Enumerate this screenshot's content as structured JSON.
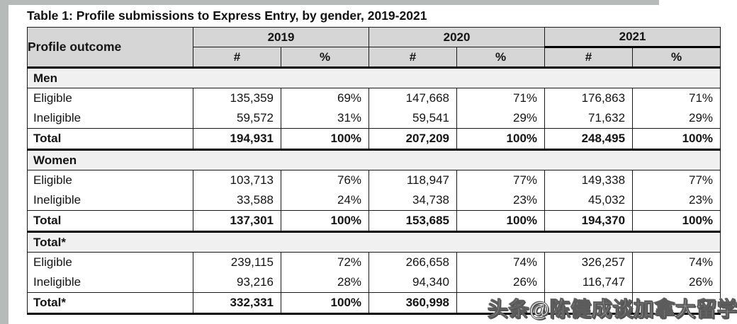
{
  "title": "Table 1: Profile submissions to Express Entry, by gender, 2019-2021",
  "columns": {
    "outcome_label": "Profile outcome",
    "years": [
      {
        "label": "2019",
        "sub": [
          "#",
          "%"
        ]
      },
      {
        "label": "2020",
        "sub": [
          "#",
          "%"
        ]
      },
      {
        "label": "2021",
        "sub": [
          "#",
          "%"
        ]
      }
    ]
  },
  "sections": [
    {
      "label": "Men",
      "rows": [
        {
          "label": "Eligible",
          "total": false,
          "values": [
            "135,359",
            "69%",
            "147,668",
            "71%",
            "176,863",
            "71%"
          ]
        },
        {
          "label": "Ineligible",
          "total": false,
          "values": [
            "59,572",
            "31%",
            "59,541",
            "29%",
            "71,632",
            "29%"
          ]
        },
        {
          "label": "Total",
          "total": true,
          "values": [
            "194,931",
            "100%",
            "207,209",
            "100%",
            "248,495",
            "100%"
          ]
        }
      ]
    },
    {
      "label": "Women",
      "rows": [
        {
          "label": "Eligible",
          "total": false,
          "values": [
            "103,713",
            "76%",
            "118,947",
            "77%",
            "149,338",
            "77%"
          ]
        },
        {
          "label": "Ineligible",
          "total": false,
          "values": [
            "33,588",
            "24%",
            "34,738",
            "23%",
            "45,032",
            "23%"
          ]
        },
        {
          "label": "Total",
          "total": true,
          "values": [
            "137,301",
            "100%",
            "153,685",
            "100%",
            "194,370",
            "100%"
          ]
        }
      ]
    },
    {
      "label": "Total*",
      "rows": [
        {
          "label": "Eligible",
          "total": false,
          "values": [
            "239,115",
            "72%",
            "266,658",
            "74%",
            "326,257",
            "74%"
          ]
        },
        {
          "label": "Ineligible",
          "total": false,
          "values": [
            "93,216",
            "28%",
            "94,340",
            "26%",
            "116,747",
            "26%"
          ]
        },
        {
          "label": "Total*",
          "total": true,
          "values": [
            "332,331",
            "100%",
            "360,998",
            "",
            "",
            ""
          ]
        }
      ]
    }
  ],
  "watermark": {
    "text": "头条@陈健成谈加拿大留学"
  },
  "colors": {
    "header_bg": "#d6d6d6",
    "section_bg": "#f0f0f0",
    "border": "#1a1a1a",
    "edge_gray": "#b6bab9",
    "watermark_fill": "#fdfdfd",
    "watermark_outline": "#5c5c5c"
  }
}
